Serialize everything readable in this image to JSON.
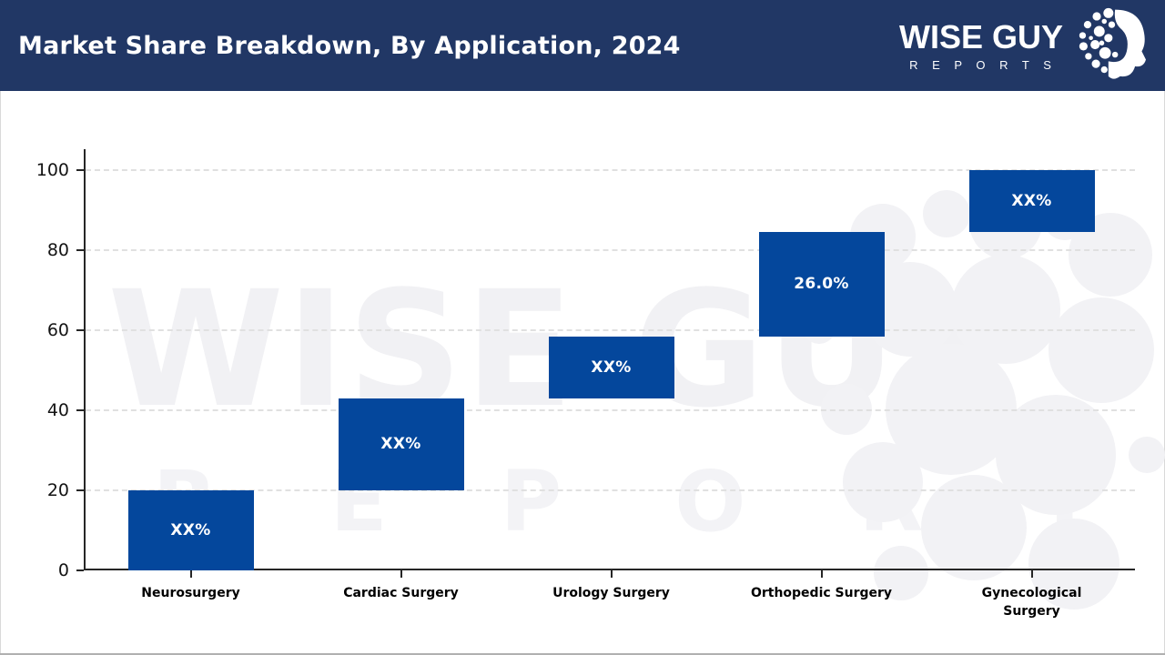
{
  "header": {
    "title": "Market Share Breakdown, By Application, 2024",
    "bg_color": "#213765",
    "brand_line1": "WISE GUY",
    "brand_line2": "R E P O R T S"
  },
  "watermark": {
    "line1": "WISE GUY",
    "line2": "R E P O R T S"
  },
  "chart_data": {
    "type": "bar",
    "subtype": "floating-waterfall",
    "title": "Market Share Breakdown, By Application, 2024",
    "categories": [
      "Neurosurgery",
      "Cardiac Surgery",
      "Urology Surgery",
      "Orthopedic Surgery",
      "Gynecological Surgery"
    ],
    "x_tick_lines": [
      [
        "Neurosurgery"
      ],
      [
        "Cardiac Surgery"
      ],
      [
        "Urology Surgery"
      ],
      [
        "Orthopedic Surgery"
      ],
      [
        "Gynecological",
        "Surgery"
      ]
    ],
    "segments": [
      {
        "category": "Neurosurgery",
        "start": 0,
        "end": 20,
        "size": 20,
        "label": "XX%"
      },
      {
        "category": "Cardiac Surgery",
        "start": 20,
        "end": 43,
        "size": 23,
        "label": "XX%"
      },
      {
        "category": "Urology Surgery",
        "start": 43,
        "end": 58.5,
        "size": 15.5,
        "label": "XX%"
      },
      {
        "category": "Orthopedic Surgery",
        "start": 58.5,
        "end": 84.5,
        "size": 26,
        "label": "26.0%"
      },
      {
        "category": "Gynecological Surgery",
        "start": 84.5,
        "end": 100,
        "size": 15.5,
        "label": "XX%"
      }
    ],
    "yticks": [
      0,
      20,
      40,
      60,
      80,
      100
    ],
    "ylim": [
      0,
      105.2
    ],
    "xlabel": "",
    "ylabel": "",
    "bar_color": "#04479c",
    "bar_label_color": "#ffffff",
    "grid": {
      "axis": "y",
      "style": "dashed",
      "color": "#e0e0e0"
    },
    "legend": "none"
  }
}
